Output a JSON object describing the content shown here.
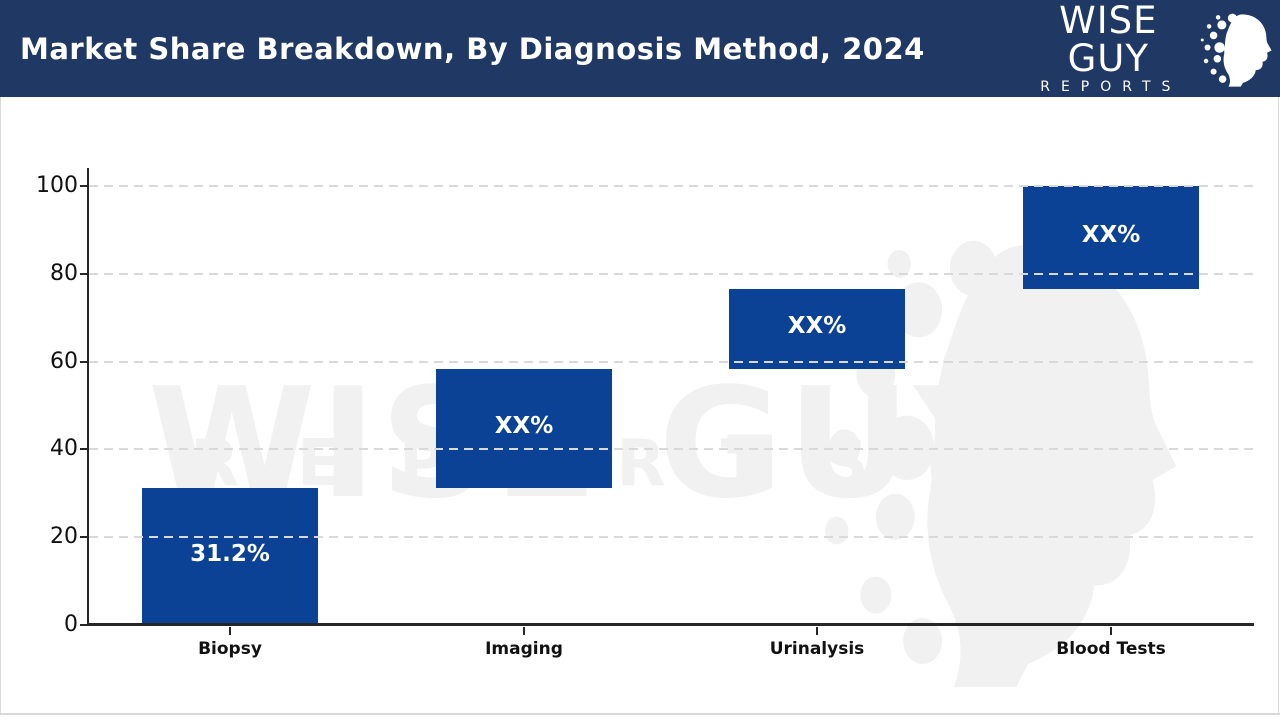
{
  "header": {
    "title": "Market Share Breakdown, By Diagnosis Method, 2024",
    "bg_color": "#203864",
    "logo": {
      "line1": "WISE GUY",
      "line2": "REPORTS"
    }
  },
  "watermark": {
    "line1": "WISE GUY",
    "line2": "REPORTS"
  },
  "chart_data": {
    "type": "bar",
    "subtype": "waterfall",
    "title": "Market Share Breakdown, By Diagnosis Method, 2024",
    "categories": [
      "Biopsy",
      "Imaging",
      "Urinalysis",
      "Blood Tests"
    ],
    "segments": [
      {
        "category": "Biopsy",
        "start": 0,
        "end": 31.2,
        "value_label": "31.2%"
      },
      {
        "category": "Imaging",
        "start": 31.2,
        "end": 58.3,
        "value_label": "XX%"
      },
      {
        "category": "Urinalysis",
        "start": 58.3,
        "end": 76.5,
        "value_label": "XX%"
      },
      {
        "category": "Blood Tests",
        "start": 76.5,
        "end": 100,
        "value_label": "XX%"
      }
    ],
    "y_ticks": [
      0,
      20,
      40,
      60,
      80,
      100
    ],
    "ylim": [
      0,
      104
    ],
    "xlabel": "",
    "ylabel": "",
    "grid": "horizontal-dashed",
    "legend": "none",
    "bar_color": "#0b4296",
    "bar_label_color": "#ffffff",
    "axis_color": "#262626",
    "grid_color": "#d9d9d9"
  }
}
